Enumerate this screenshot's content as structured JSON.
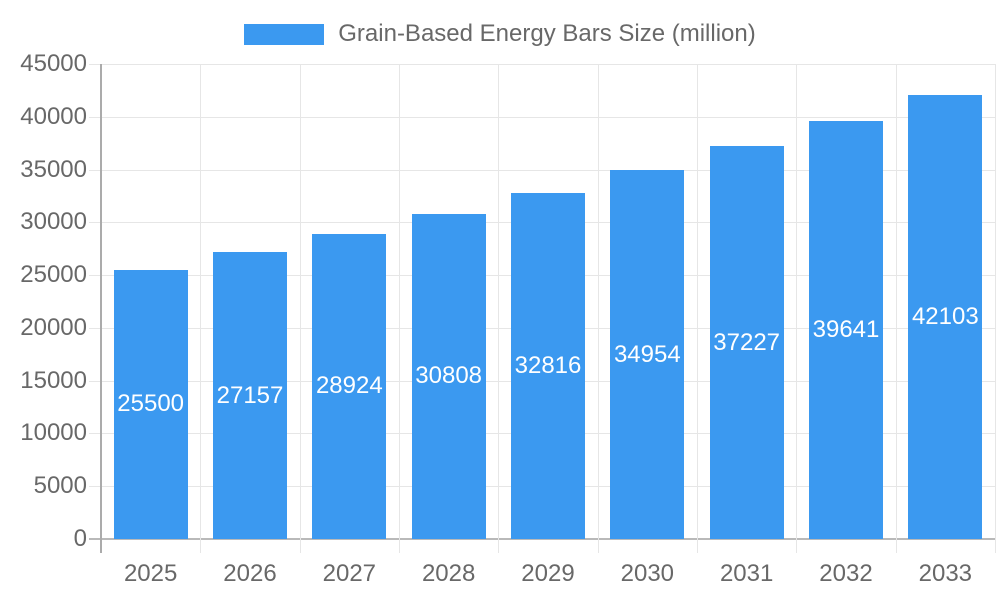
{
  "legend": {
    "label": "Grain-Based Energy Bars Size (million)"
  },
  "chart_data": {
    "type": "bar",
    "title": "Grain-Based Energy Bars Size (million)",
    "categories": [
      "2025",
      "2026",
      "2027",
      "2028",
      "2029",
      "2030",
      "2031",
      "2032",
      "2033"
    ],
    "values": [
      25500,
      27157,
      28924,
      30808,
      32816,
      34954,
      37227,
      39641,
      42103
    ],
    "series_name": "Grain-Based Energy Bars Size (million)",
    "xlabel": "",
    "ylabel": "",
    "ylim": [
      0,
      45000
    ],
    "yticks": [
      0,
      5000,
      10000,
      15000,
      20000,
      25000,
      30000,
      35000,
      40000,
      45000
    ],
    "grid": true,
    "legend_position": "top-center",
    "show_value_labels": true,
    "value_label_position": "center-of-bar",
    "colors": {
      "bar": "#3b99f0",
      "value_label": "#ffffff",
      "tick_text": "#686868",
      "legend_text": "#686868",
      "gridline": "#e6e6e6",
      "axis_line_x": "#b9b9b9",
      "axis_line_y": "#ababab",
      "background": "#ffffff"
    }
  }
}
